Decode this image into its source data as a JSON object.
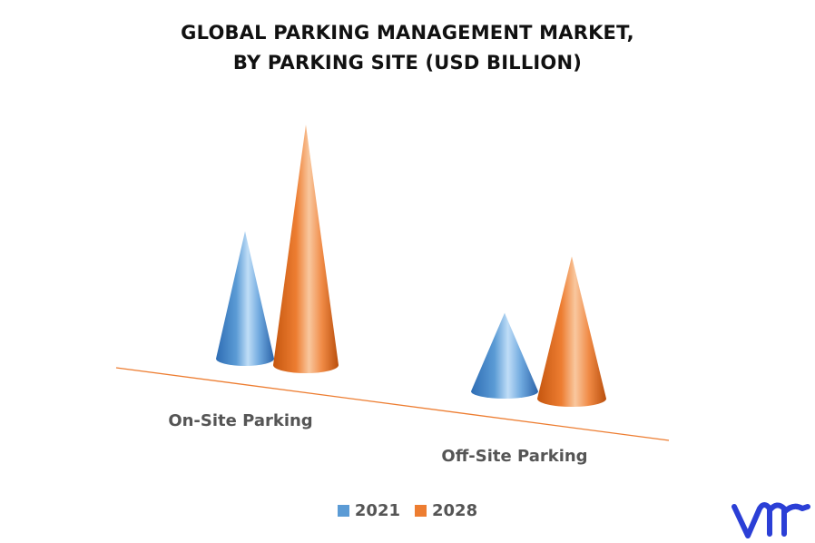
{
  "chart_data": {
    "type": "bar",
    "title_lines": [
      "GLOBAL PARKING MANAGEMENT MARKET,",
      "BY PARKING SITE (USD BILLION)"
    ],
    "categories": [
      "On-Site Parking",
      "Off-Site Parking"
    ],
    "series": [
      {
        "name": "2021",
        "color": "#5B9BD5",
        "values": [
          2.6,
          1.6
        ]
      },
      {
        "name": "2028",
        "color": "#ED7D31",
        "values": [
          4.9,
          2.9
        ]
      }
    ],
    "ylim": [
      0,
      5
    ],
    "grid": false,
    "legend_position": "bottom"
  },
  "logo": {
    "icon": "vmr-logo-icon",
    "color": "#2B3FD6"
  }
}
